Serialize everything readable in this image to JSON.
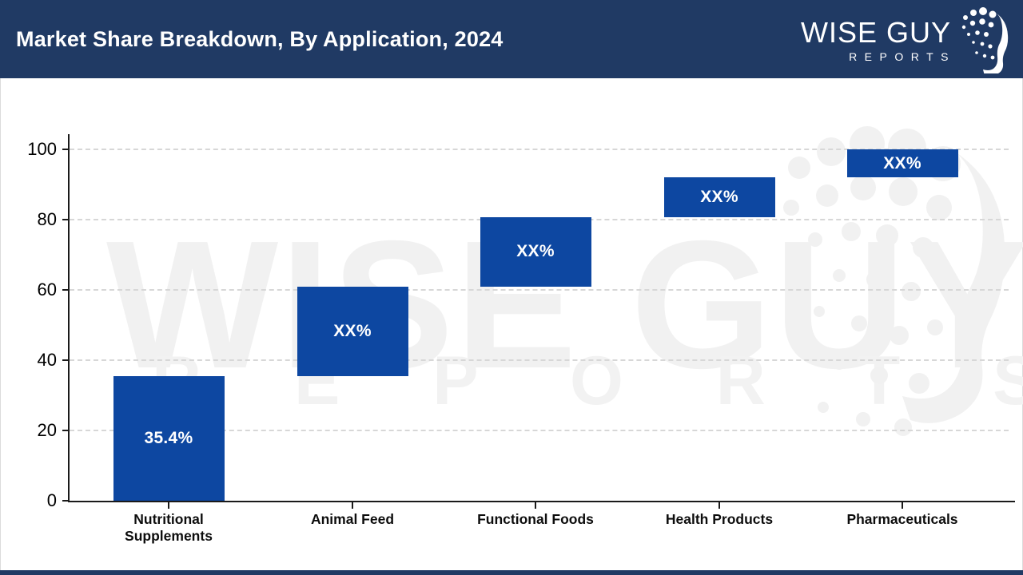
{
  "header": {
    "title": "Market Share Breakdown, By Application, 2024",
    "logo": {
      "line1": "WISE GUY",
      "line2": "REPORTS"
    }
  },
  "watermark": {
    "line1": "WISE GUY",
    "line2": "R E P O R T S"
  },
  "footer": {},
  "colors": {
    "header_bg": "#203a64",
    "bar": "#0d47a1",
    "bar_label": "#ffffff",
    "grid": "#d7d7d7",
    "axis": "#1a1a1a",
    "watermark": "#f1f1f1"
  },
  "chart_data": {
    "type": "bar",
    "subtype": "waterfall",
    "title": "Market Share Breakdown, By Application, 2024",
    "xlabel": "",
    "ylabel": "",
    "categories": [
      "Nutritional Supplements",
      "Animal Feed",
      "Functional Foods",
      "Health Products",
      "Pharmaceuticals"
    ],
    "segments": [
      {
        "category": "Nutritional Supplements",
        "start": 0,
        "end": 35.4,
        "label": "35.4%"
      },
      {
        "category": "Animal Feed",
        "start": 35.4,
        "end": 61.0,
        "label": "XX%"
      },
      {
        "category": "Functional Foods",
        "start": 61.0,
        "end": 80.7,
        "label": "XX%"
      },
      {
        "category": "Health Products",
        "start": 80.7,
        "end": 92.0,
        "label": "XX%"
      },
      {
        "category": "Pharmaceuticals",
        "start": 92.0,
        "end": 100.0,
        "label": "XX%"
      }
    ],
    "yticks": [
      0,
      20,
      40,
      60,
      80,
      100
    ],
    "ylim": [
      0,
      104
    ],
    "grid": "dashed horizontal at 20/40/60/80/100",
    "legend": "none"
  }
}
